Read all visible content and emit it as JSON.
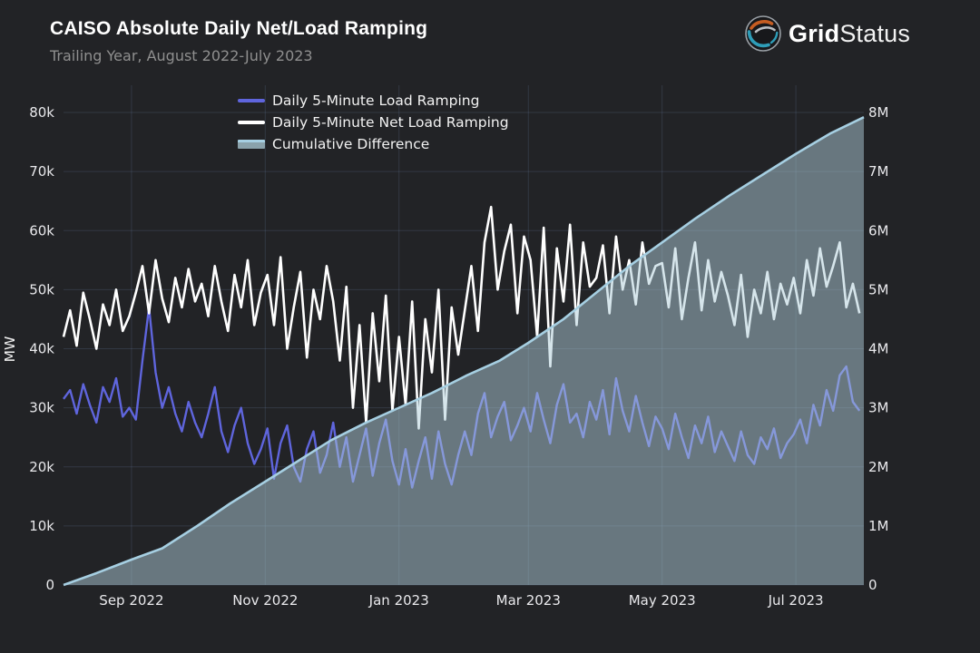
{
  "header": {
    "title": "CAISO Absolute Daily Net/Load Ramping",
    "subtitle": "Trailing Year, August 2022-July 2023"
  },
  "logo": {
    "brand_bold": "Grid",
    "brand_light": "Status"
  },
  "legend": {
    "items": [
      {
        "label": "Daily 5-Minute Load Ramping",
        "swatch": "line",
        "color_key": "load_line"
      },
      {
        "label": "Daily 5-Minute Net Load Ramping",
        "swatch": "line",
        "color_key": "net_load_line"
      },
      {
        "label": "Cumulative Difference",
        "swatch": "area",
        "color_key": "cumulative_line"
      }
    ]
  },
  "colors": {
    "background": "#222326",
    "load_line": "#5f65dd",
    "net_load_line": "#ffffff",
    "cumulative_line": "#a6cfe2",
    "cumulative_fill_rgb": "173,204,216",
    "cumulative_fill_alpha": 0.5,
    "grid_line": "rgba(110,132,175,0.22)",
    "subtitle_text": "#8f8f8f",
    "tick_text": "#e9e9ec"
  },
  "chart_data": {
    "type": "line",
    "title": "CAISO Absolute Daily Net/Load Ramping",
    "subtitle": "Trailing Year, August 2022-July 2023",
    "grid": true,
    "legend_position": "top-left-inside",
    "x_axis": {
      "unit": "date",
      "range_days": [
        0,
        365
      ],
      "ticks": [
        {
          "label": "Sep 2022",
          "day": 31
        },
        {
          "label": "Nov 2022",
          "day": 92
        },
        {
          "label": "Jan 2023",
          "day": 153
        },
        {
          "label": "Mar 2023",
          "day": 212
        },
        {
          "label": "May 2023",
          "day": 273
        },
        {
          "label": "Jul 2023",
          "day": 334
        }
      ]
    },
    "y_axis_left": {
      "title": "MW",
      "range": [
        0,
        80000
      ],
      "tick_labels": [
        "0",
        "10k",
        "20k",
        "30k",
        "40k",
        "50k",
        "60k",
        "70k",
        "80k"
      ]
    },
    "y_axis_right": {
      "title": "",
      "range": [
        0,
        8000000
      ],
      "tick_labels": [
        "0",
        "1M",
        "2M",
        "3M",
        "4M",
        "5M",
        "6M",
        "7M",
        "8M"
      ]
    },
    "series": [
      {
        "name": "Daily 5-Minute Load Ramping",
        "type": "line",
        "axis": "left",
        "unit": "thousand MW",
        "start_day": 0,
        "step_days": 3,
        "values_k": [
          31.5,
          33,
          29,
          34,
          30.5,
          27.5,
          33.5,
          31,
          35,
          28.5,
          30,
          28,
          38,
          47,
          36,
          30,
          33.5,
          29,
          26,
          31,
          27.5,
          25,
          29,
          33.5,
          26,
          22.5,
          27,
          30,
          24,
          20.5,
          23,
          26.5,
          18,
          24,
          27,
          20,
          17.5,
          23,
          26,
          19,
          22,
          27.5,
          20,
          25,
          17.5,
          22,
          26.5,
          18.5,
          24,
          28,
          21,
          17,
          23,
          16.5,
          21,
          25,
          18,
          26,
          20.5,
          17,
          22,
          26,
          22,
          29,
          32.5,
          25,
          28.5,
          31,
          24.5,
          27,
          30,
          26,
          32.5,
          28,
          24,
          30.5,
          34,
          27.5,
          29,
          25,
          31,
          28,
          33,
          25.5,
          35,
          29.5,
          26,
          32,
          27.5,
          23.5,
          28.5,
          26.5,
          23,
          29,
          25,
          21.5,
          27,
          24,
          28.5,
          22.5,
          26,
          23.5,
          21,
          26,
          22,
          20.5,
          25,
          23,
          26.5,
          21.5,
          24,
          25.5,
          28,
          24,
          30.5,
          27,
          33,
          29.5,
          35.5,
          37,
          31,
          29.5
        ]
      },
      {
        "name": "Daily 5-Minute Net Load Ramping",
        "type": "line",
        "axis": "left",
        "unit": "thousand MW",
        "start_day": 0,
        "step_days": 3,
        "values_k": [
          42,
          46.5,
          40.5,
          49.5,
          45,
          40,
          47.5,
          44,
          50,
          43,
          45.5,
          49.5,
          54,
          46,
          55,
          48.5,
          44.5,
          52,
          47,
          53.5,
          48,
          51,
          45.5,
          54,
          48,
          43,
          52.5,
          47,
          55,
          44,
          49.5,
          52.5,
          44,
          55.5,
          40,
          47,
          53,
          38.5,
          50,
          45,
          54,
          48,
          38,
          50.5,
          30,
          44,
          27.5,
          46,
          34.5,
          49,
          29.5,
          42,
          30.5,
          48,
          26.5,
          45,
          36,
          50,
          28,
          47,
          39,
          46.5,
          54,
          43,
          58,
          64,
          50,
          56.5,
          61,
          46,
          59,
          55,
          42,
          60.5,
          37,
          57,
          48,
          61,
          44,
          58,
          50.5,
          52,
          57.5,
          46,
          59,
          50,
          55,
          47.5,
          58,
          51,
          54,
          54.5,
          47,
          57,
          45,
          52,
          58,
          46.5,
          55,
          48,
          53,
          49,
          44,
          52.5,
          42,
          50,
          46,
          53,
          45,
          51,
          47.5,
          52,
          46,
          55,
          49,
          57,
          50.5,
          54,
          58,
          47,
          51,
          46
        ]
      },
      {
        "name": "Cumulative Difference",
        "type": "area",
        "axis": "right",
        "unit": "million MW",
        "points_day_valueM": [
          [
            0,
            0
          ],
          [
            15,
            0.2
          ],
          [
            31,
            0.43
          ],
          [
            45,
            0.62
          ],
          [
            61,
            1.0
          ],
          [
            76,
            1.38
          ],
          [
            92,
            1.75
          ],
          [
            107,
            2.1
          ],
          [
            122,
            2.45
          ],
          [
            138,
            2.75
          ],
          [
            153,
            3.0
          ],
          [
            168,
            3.25
          ],
          [
            184,
            3.55
          ],
          [
            199,
            3.8
          ],
          [
            212,
            4.1
          ],
          [
            228,
            4.5
          ],
          [
            243,
            4.95
          ],
          [
            258,
            5.4
          ],
          [
            273,
            5.8
          ],
          [
            288,
            6.2
          ],
          [
            304,
            6.6
          ],
          [
            319,
            6.95
          ],
          [
            334,
            7.3
          ],
          [
            350,
            7.65
          ],
          [
            365,
            7.92
          ]
        ]
      }
    ]
  }
}
